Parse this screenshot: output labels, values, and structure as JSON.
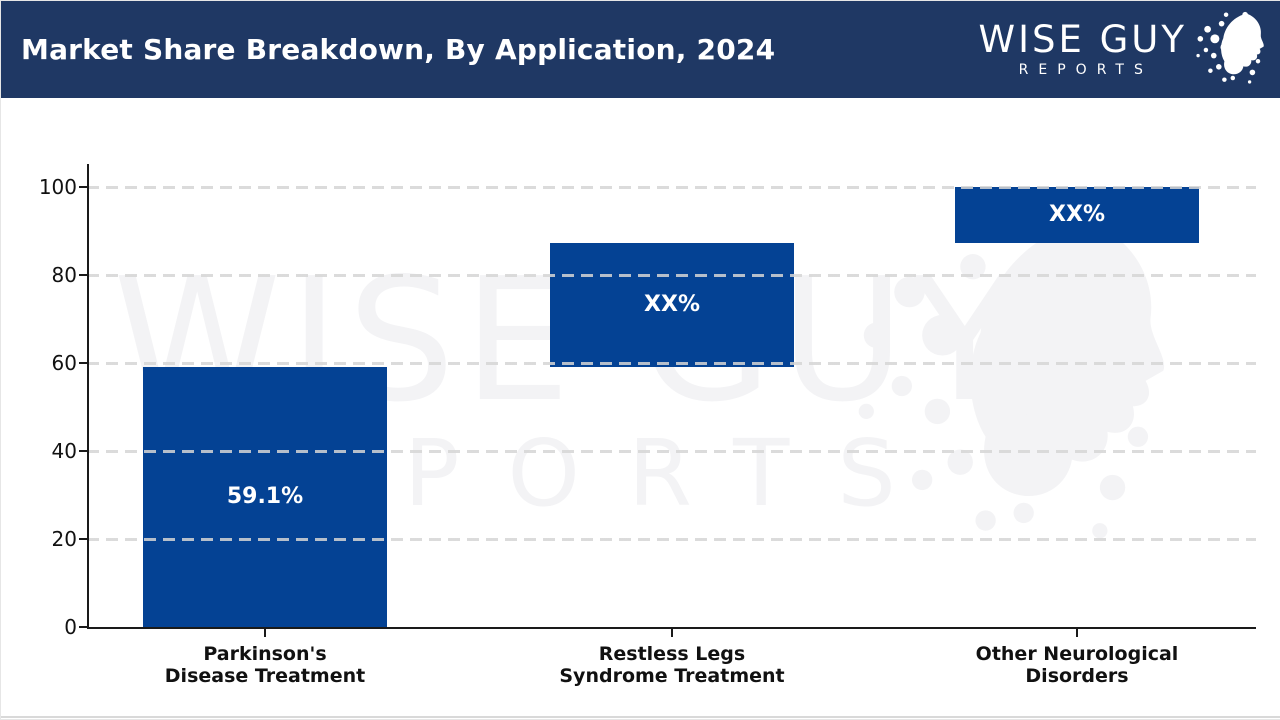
{
  "header": {
    "title": "Market Share Breakdown, By Application, 2024",
    "logo": {
      "line1": "WISE GUY",
      "line2": "REPORTS"
    }
  },
  "watermark": {
    "line1": "WISE GUY",
    "line2": "REPORTS"
  },
  "chart_data": {
    "type": "bar",
    "subtype": "stacked-waterfall-percent",
    "title": "Market Share Breakdown, By Application, 2024",
    "categories": [
      [
        "Parkinson's",
        "Disease Treatment"
      ],
      [
        "Restless Legs",
        "Syndrome Treatment"
      ],
      [
        "Other Neurological",
        "Disorders"
      ]
    ],
    "segments": [
      {
        "category": "Parkinson's Disease Treatment",
        "start": 0,
        "end": 59.1,
        "label": "59.1%"
      },
      {
        "category": "Restless Legs Syndrome Treatment",
        "start": 59.1,
        "end": 87.3,
        "label": "XX%"
      },
      {
        "category": "Other Neurological Disorders",
        "start": 87.3,
        "end": 100,
        "label": "XX%"
      }
    ],
    "yticks": [
      0,
      20,
      40,
      60,
      80,
      100
    ],
    "ylim": [
      0,
      105
    ],
    "xlabel": "",
    "ylabel": "",
    "grid": true,
    "grid_style": "dashed",
    "legend": false
  },
  "colors": {
    "header_bg": "#1f3864",
    "bar": "#044294",
    "grid": "#d5d5d5",
    "axis": "#1a1a1a",
    "text": "#111111",
    "watermark": "#f3f3f5",
    "title": "#ffffff"
  }
}
